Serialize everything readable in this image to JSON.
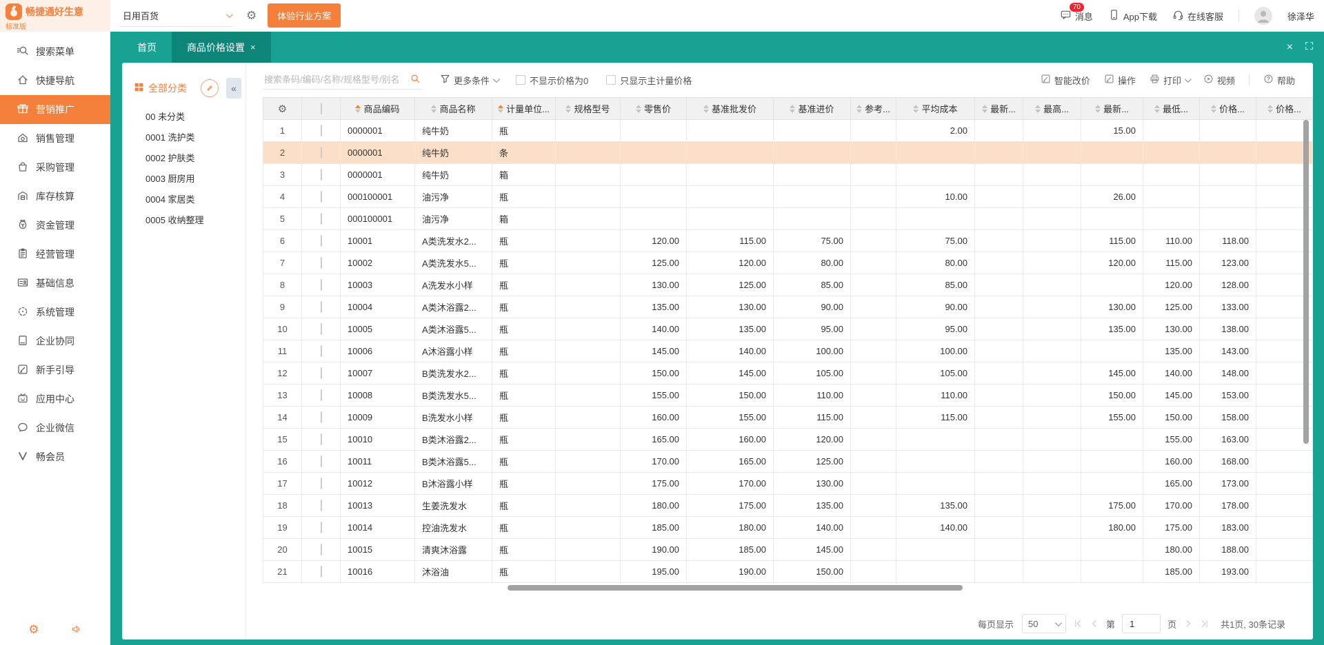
{
  "topbar": {
    "logo_title": "畅捷通好生意",
    "logo_edition": "标准版",
    "org_selector_value": "日用百货",
    "trial_button": "体验行业方案",
    "messages_label": "消息",
    "messages_badge": "70",
    "app_download_label": "App下载",
    "support_label": "在线客服",
    "username": "徐泽华"
  },
  "sidebar": {
    "items": [
      {
        "label": "搜索菜单",
        "icon": "search",
        "active": false
      },
      {
        "label": "快捷导航",
        "icon": "home",
        "active": false
      },
      {
        "label": "营销推广",
        "icon": "gift",
        "active": true
      },
      {
        "label": "销售管理",
        "icon": "sale",
        "active": false
      },
      {
        "label": "采购管理",
        "icon": "purchase",
        "active": false
      },
      {
        "label": "库存核算",
        "icon": "inventory",
        "active": false
      },
      {
        "label": "资金管理",
        "icon": "funds",
        "active": false
      },
      {
        "label": "经营管理",
        "icon": "business",
        "active": false
      },
      {
        "label": "基础信息",
        "icon": "baseinfo",
        "active": false
      },
      {
        "label": "系统管理",
        "icon": "system",
        "active": false
      },
      {
        "label": "企业协同",
        "icon": "collab",
        "active": false
      },
      {
        "label": "新手引导",
        "icon": "newguide",
        "active": false
      },
      {
        "label": "应用中心",
        "icon": "appcenter",
        "active": false
      },
      {
        "label": "企业微信",
        "icon": "wechat",
        "active": false
      },
      {
        "label": "畅会员",
        "icon": "member",
        "active": false
      }
    ],
    "bottom_icons": [
      "settings",
      "announcement"
    ]
  },
  "tabs": {
    "items": [
      {
        "label": "首页",
        "active": false,
        "closable": false
      },
      {
        "label": "商品价格设置",
        "active": true,
        "closable": true
      }
    ]
  },
  "category_panel": {
    "title": "全部分类",
    "items": [
      "00 未分类",
      "0001 洗护类",
      "0002 护肤类",
      "0003 厨房用",
      "0004 家居类",
      "0005 收纳整理"
    ]
  },
  "filters": {
    "search_placeholder": "搜索条码/编码/名称/规格型号/别名",
    "more_filters_label": "更多条件",
    "checkbox_hide_zero": "不显示价格为0",
    "checkbox_main_unit": "只显示主计量价格",
    "smart_reprice_label": "智能改价",
    "operate_label": "操作",
    "print_label": "打印",
    "video_label": "视频",
    "help_label": "帮助"
  },
  "table": {
    "columns": [
      {
        "key": "code",
        "label": "商品编码",
        "sort": "asc"
      },
      {
        "key": "name",
        "label": "商品名称",
        "sort": "none"
      },
      {
        "key": "unit",
        "label": "计量单位...",
        "sort": "asc"
      },
      {
        "key": "spec",
        "label": "规格型号",
        "sort": "none"
      },
      {
        "key": "retail",
        "label": "零售价",
        "sort": "none"
      },
      {
        "key": "base_wholesale",
        "label": "基准批发价",
        "sort": "none"
      },
      {
        "key": "base_purchase",
        "label": "基准进价",
        "sort": "none"
      },
      {
        "key": "ref",
        "label": "参考...",
        "sort": "none"
      },
      {
        "key": "avg_cost",
        "label": "平均成本",
        "sort": "none"
      },
      {
        "key": "latest_a",
        "label": "最新...",
        "sort": "none"
      },
      {
        "key": "highest",
        "label": "最高...",
        "sort": "none"
      },
      {
        "key": "latest_b",
        "label": "最新...",
        "sort": "none"
      },
      {
        "key": "lowest",
        "label": "最低...",
        "sort": "none"
      },
      {
        "key": "price_a",
        "label": "价格...",
        "sort": "none"
      },
      {
        "key": "price_b",
        "label": "价格...",
        "sort": "none"
      }
    ],
    "rows": [
      {
        "n": "1",
        "highlight": false,
        "cells": [
          "0000001",
          "纯牛奶",
          "瓶",
          "",
          "",
          "",
          "",
          "",
          "2.00",
          "",
          "",
          "15.00",
          "",
          "",
          ""
        ]
      },
      {
        "n": "2",
        "highlight": true,
        "cells": [
          "0000001",
          "纯牛奶",
          "条",
          "",
          "",
          "",
          "",
          "",
          "",
          "",
          "",
          "",
          "",
          "",
          ""
        ]
      },
      {
        "n": "3",
        "highlight": false,
        "cells": [
          "0000001",
          "纯牛奶",
          "箱",
          "",
          "",
          "",
          "",
          "",
          "",
          "",
          "",
          "",
          "",
          "",
          ""
        ]
      },
      {
        "n": "4",
        "highlight": false,
        "cells": [
          "000100001",
          "油污净",
          "瓶",
          "",
          "",
          "",
          "",
          "",
          "10.00",
          "",
          "",
          "26.00",
          "",
          "",
          ""
        ]
      },
      {
        "n": "5",
        "highlight": false,
        "cells": [
          "000100001",
          "油污净",
          "箱",
          "",
          "",
          "",
          "",
          "",
          "",
          "",
          "",
          "",
          "",
          "",
          ""
        ]
      },
      {
        "n": "6",
        "highlight": false,
        "cells": [
          "10001",
          "A类洗发水2...",
          "瓶",
          "",
          "120.00",
          "115.00",
          "75.00",
          "",
          "75.00",
          "",
          "",
          "115.00",
          "110.00",
          "118.00",
          ""
        ]
      },
      {
        "n": "7",
        "highlight": false,
        "cells": [
          "10002",
          "A类洗发水5...",
          "瓶",
          "",
          "125.00",
          "120.00",
          "80.00",
          "",
          "80.00",
          "",
          "",
          "120.00",
          "115.00",
          "123.00",
          ""
        ]
      },
      {
        "n": "8",
        "highlight": false,
        "cells": [
          "10003",
          "A洗发水小样",
          "瓶",
          "",
          "130.00",
          "125.00",
          "85.00",
          "",
          "85.00",
          "",
          "",
          "",
          "120.00",
          "128.00",
          ""
        ]
      },
      {
        "n": "9",
        "highlight": false,
        "cells": [
          "10004",
          "A类沐浴露2...",
          "瓶",
          "",
          "135.00",
          "130.00",
          "90.00",
          "",
          "90.00",
          "",
          "",
          "130.00",
          "125.00",
          "133.00",
          ""
        ]
      },
      {
        "n": "10",
        "highlight": false,
        "cells": [
          "10005",
          "A类沐浴露5...",
          "瓶",
          "",
          "140.00",
          "135.00",
          "95.00",
          "",
          "95.00",
          "",
          "",
          "135.00",
          "130.00",
          "138.00",
          ""
        ]
      },
      {
        "n": "11",
        "highlight": false,
        "cells": [
          "10006",
          "A沐浴露小样",
          "瓶",
          "",
          "145.00",
          "140.00",
          "100.00",
          "",
          "100.00",
          "",
          "",
          "",
          "135.00",
          "143.00",
          ""
        ]
      },
      {
        "n": "12",
        "highlight": false,
        "cells": [
          "10007",
          "B类洗发水2...",
          "瓶",
          "",
          "150.00",
          "145.00",
          "105.00",
          "",
          "105.00",
          "",
          "",
          "145.00",
          "140.00",
          "148.00",
          ""
        ]
      },
      {
        "n": "13",
        "highlight": false,
        "cells": [
          "10008",
          "B类洗发水5...",
          "瓶",
          "",
          "155.00",
          "150.00",
          "110.00",
          "",
          "110.00",
          "",
          "",
          "150.00",
          "145.00",
          "153.00",
          ""
        ]
      },
      {
        "n": "14",
        "highlight": false,
        "cells": [
          "10009",
          "B洗发水小样",
          "瓶",
          "",
          "160.00",
          "155.00",
          "115.00",
          "",
          "115.00",
          "",
          "",
          "155.00",
          "150.00",
          "158.00",
          ""
        ]
      },
      {
        "n": "15",
        "highlight": false,
        "cells": [
          "10010",
          "B类沐浴露2...",
          "瓶",
          "",
          "165.00",
          "160.00",
          "120.00",
          "",
          "",
          "",
          "",
          "",
          "155.00",
          "163.00",
          ""
        ]
      },
      {
        "n": "16",
        "highlight": false,
        "cells": [
          "10011",
          "B类沐浴露5...",
          "瓶",
          "",
          "170.00",
          "165.00",
          "125.00",
          "",
          "",
          "",
          "",
          "",
          "160.00",
          "168.00",
          ""
        ]
      },
      {
        "n": "17",
        "highlight": false,
        "cells": [
          "10012",
          "B沐浴露小样",
          "瓶",
          "",
          "175.00",
          "170.00",
          "130.00",
          "",
          "",
          "",
          "",
          "",
          "165.00",
          "173.00",
          ""
        ]
      },
      {
        "n": "18",
        "highlight": false,
        "cells": [
          "10013",
          "生姜洗发水",
          "瓶",
          "",
          "180.00",
          "175.00",
          "135.00",
          "",
          "135.00",
          "",
          "",
          "175.00",
          "170.00",
          "178.00",
          ""
        ]
      },
      {
        "n": "19",
        "highlight": false,
        "cells": [
          "10014",
          "控油洗发水",
          "瓶",
          "",
          "185.00",
          "180.00",
          "140.00",
          "",
          "140.00",
          "",
          "",
          "180.00",
          "175.00",
          "183.00",
          ""
        ]
      },
      {
        "n": "20",
        "highlight": false,
        "cells": [
          "10015",
          "清爽沐浴露",
          "瓶",
          "",
          "190.00",
          "185.00",
          "145.00",
          "",
          "",
          "",
          "",
          "",
          "180.00",
          "188.00",
          ""
        ]
      },
      {
        "n": "21",
        "highlight": false,
        "cells": [
          "10016",
          "沐浴油",
          "瓶",
          "",
          "195.00",
          "190.00",
          "150.00",
          "",
          "",
          "",
          "",
          "",
          "185.00",
          "193.00",
          ""
        ]
      }
    ]
  },
  "pagination": {
    "per_page_label": "每页显示",
    "per_page_value": "50",
    "page_prefix": "第",
    "page_value": "1",
    "page_suffix": "页",
    "summary": "共1页, 30条记录"
  },
  "colors": {
    "teal": "#17a294",
    "teal_dark": "#0d8679",
    "orange": "#f5803c",
    "highlight_row": "#fbdfc9",
    "badge_red": "#f5222d"
  }
}
